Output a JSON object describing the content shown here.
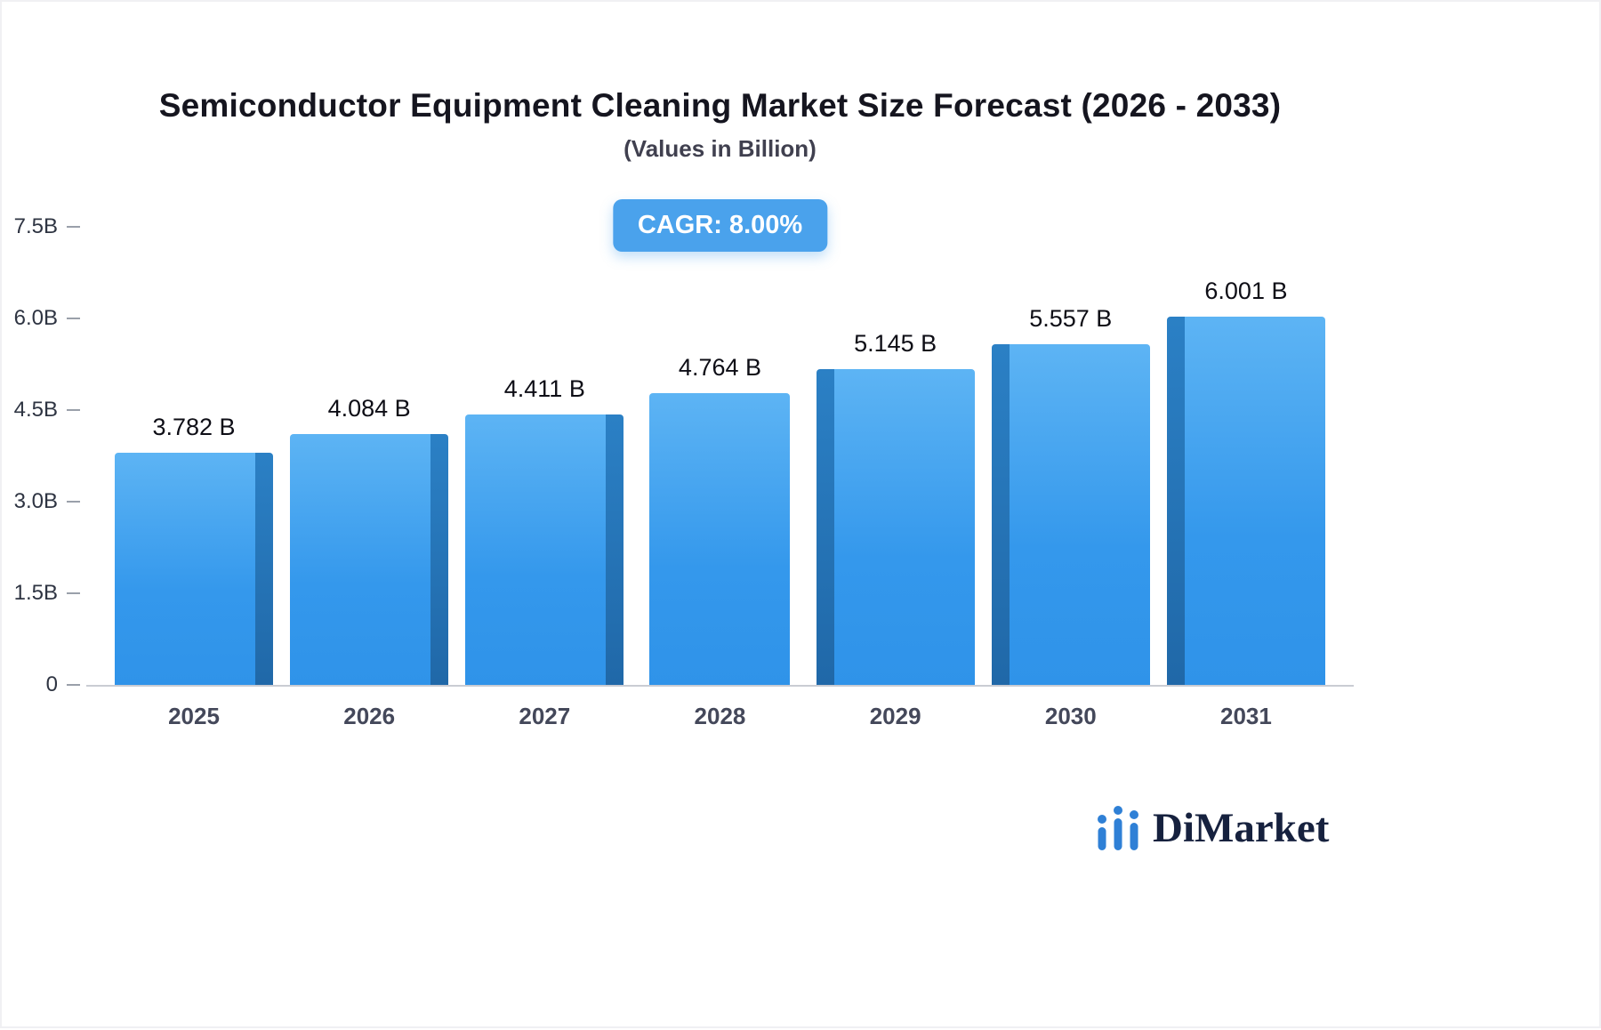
{
  "header": {
    "title": "Semiconductor Equipment Cleaning Market Size Forecast (2026 - 2033)",
    "subtitle": "(Values in Billion)"
  },
  "badge": {
    "label": "CAGR: 8.00%",
    "color": "#4aa2ec"
  },
  "chart_data": {
    "type": "bar",
    "title": "Semiconductor Equipment Cleaning Market Size Forecast (2026 - 2033)",
    "subtitle": "(Values in Billion)",
    "categories": [
      "2025",
      "2026",
      "2027",
      "2028",
      "2029",
      "2030",
      "2031"
    ],
    "values": [
      3.782,
      4.084,
      4.411,
      4.764,
      5.145,
      5.557,
      6.001
    ],
    "value_labels": [
      "3.782 B",
      "4.084 B",
      "4.411 B",
      "4.764 B",
      "5.145 B",
      "5.557 B",
      "6.001 B"
    ],
    "xlabel": "",
    "ylabel": "",
    "ylim": [
      0,
      7.5
    ],
    "yticks": [
      {
        "value": 7.5,
        "label": "7.5B"
      },
      {
        "value": 6.0,
        "label": "6.0B"
      },
      {
        "value": 4.5,
        "label": "4.5B"
      },
      {
        "value": 3.0,
        "label": "3.0B"
      },
      {
        "value": 1.5,
        "label": "1.5B"
      },
      {
        "value": 0,
        "label": "0"
      }
    ],
    "grid": false,
    "legend": false,
    "bar_color_top": "#5db4f4",
    "bar_color_bottom": "#2f93e9",
    "bar_side_color": "#2068a8"
  },
  "footer": {
    "logo_icon": "bar-chart-icon",
    "logo_text": "DiMarket",
    "logo_color": "#16213e",
    "logo_icon_color": "#2f80d6"
  }
}
